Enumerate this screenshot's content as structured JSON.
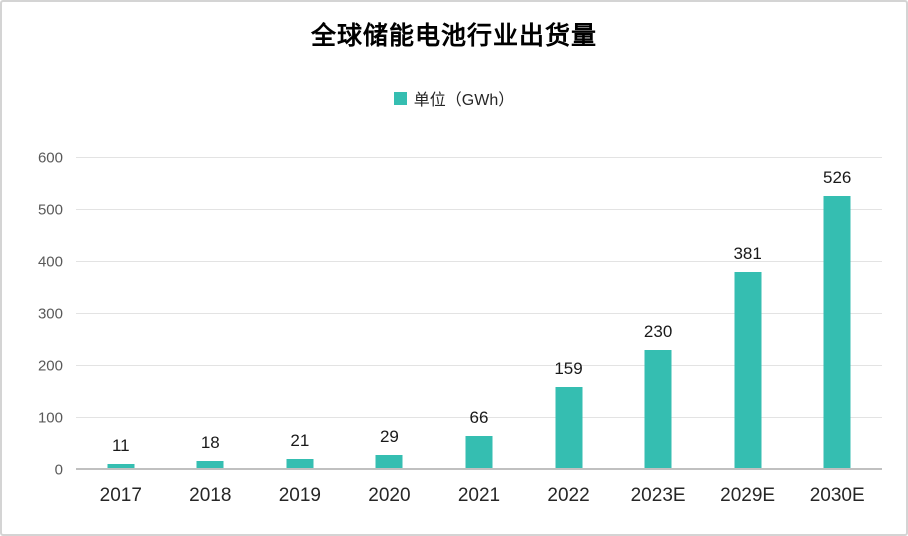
{
  "chart_data": {
    "type": "bar",
    "title": "全球储能电池行业出货量",
    "legend": "单位（GWh）",
    "legend_position": "top-center",
    "categories": [
      "2017",
      "2018",
      "2019",
      "2020",
      "2021",
      "2022",
      "2023E",
      "2029E",
      "2030E"
    ],
    "values": [
      11,
      18,
      21,
      29,
      66,
      159,
      230,
      381,
      526
    ],
    "xlabel": "",
    "ylabel": "",
    "ylim": [
      0,
      600
    ],
    "yticks": [
      0,
      100,
      200,
      300,
      400,
      500,
      600
    ],
    "grid": true,
    "data_labels_shown": true
  },
  "colors": {
    "bar": "#35beb1",
    "gridline": "#e3e3e3",
    "axis_line": "#c0c0c0",
    "ytick_text": "#595959",
    "xtick_text": "#262626",
    "value_text": "#1a1a1a",
    "title_text": "#000000",
    "panel_border": "#d4d4d4"
  }
}
